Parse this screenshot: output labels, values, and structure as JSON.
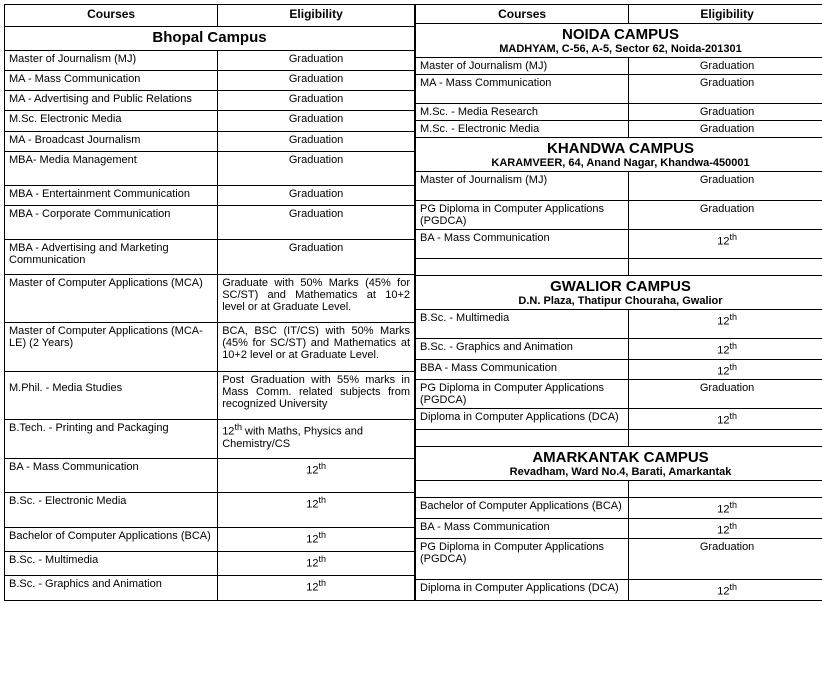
{
  "headers": {
    "courses": "Courses",
    "eligibility": "Eligibility"
  },
  "left": {
    "campus": "Bhopal Campus",
    "rows": [
      {
        "c": "Master of Journalism (MJ)",
        "e": "Graduation",
        "ea": "center"
      },
      {
        "c": "MA - Mass Communication",
        "e": "Graduation",
        "ea": "center"
      },
      {
        "c": "MA - Advertising and Public Relations",
        "e": "Graduation",
        "ea": "center"
      },
      {
        "c": "M.Sc. Electronic Media",
        "e": "Graduation",
        "ea": "center"
      },
      {
        "c": "MA - Broadcast Journalism",
        "e": "Graduation",
        "ea": "center"
      },
      {
        "c": "MBA- Media Management",
        "e": "Graduation",
        "ea": "center",
        "padBottom": true
      },
      {
        "c": "MBA - Entertainment Communication",
        "e": "Graduation",
        "ea": "center"
      },
      {
        "c": "MBA - Corporate Communication",
        "e": "Graduation",
        "ea": "center",
        "padBottom": true
      },
      {
        "c": "MBA - Advertising and Marketing Communication",
        "e": "Graduation",
        "ea": "center"
      },
      {
        "c": "Master of Computer Applications (MCA)",
        "e": "Graduate with 50% Marks (45% for SC/ST) and Mathematics at 10+2 level or at Graduate Level.",
        "ea": "justify"
      },
      {
        "c": "Master of Computer Applications (MCA-LE) (2 Years)",
        "e": "BCA, BSC (IT/CS) with 50% Marks (45% for SC/ST) and Mathematics at 10+2 level or at Graduate Level.",
        "ea": "justify"
      },
      {
        "c": "M.Phil. - Media Studies",
        "e": "Post Graduation with 55% marks in Mass Comm. related subjects from recognized University",
        "ea": "justify",
        "padTop": true
      },
      {
        "c": "B.Tech. - Printing and Packaging",
        "e": "12__SUP__ with Maths, Physics and Chemistry/CS",
        "ea": "left"
      },
      {
        "c": "BA - Mass Communication",
        "e": "12__SUP__",
        "ea": "center",
        "padBottom": true
      },
      {
        "c": "B.Sc. - Electronic Media",
        "e": "12__SUP__",
        "ea": "center",
        "padBottom": true
      },
      {
        "c": "Bachelor of Computer Applications (BCA)",
        "e": "12__SUP__",
        "ea": "center"
      },
      {
        "c": "B.Sc. - Multimedia",
        "e": "12__SUP__",
        "ea": "center"
      },
      {
        "c": "B.Sc. - Graphics and Animation",
        "e": "12__SUP__",
        "ea": "center"
      }
    ]
  },
  "right": [
    {
      "campus": "NOIDA CAMPUS",
      "sub": "MADHYAM, C-56, A-5, Sector 62, Noida-201301",
      "rows": [
        {
          "c": "Master of Journalism (MJ)",
          "e": "Graduation",
          "ea": "center"
        },
        {
          "c": "MA - Mass Communication",
          "e": "Graduation",
          "ea": "center",
          "padBottom": true
        },
        {
          "c": "M.Sc. - Media Research",
          "e": "Graduation",
          "ea": "center"
        },
        {
          "c": "M.Sc. - Electronic Media",
          "e": "Graduation",
          "ea": "center"
        }
      ]
    },
    {
      "campus": "KHANDWA CAMPUS",
      "sub": "KARAMVEER, 64, Anand Nagar, Khandwa-450001",
      "rows": [
        {
          "c": "Master of Journalism (MJ)",
          "e": "Graduation",
          "ea": "center",
          "padBottom": true
        },
        {
          "c": "PG Diploma in Computer Applications (PGDCA)",
          "e": "Graduation",
          "ea": "center"
        },
        {
          "c": "BA - Mass Communication",
          "e": "12__SUP__",
          "ea": "center",
          "padBottom": true
        }
      ],
      "spacerAfter": true
    },
    {
      "campus": "GWALIOR CAMPUS",
      "sub": "D.N. Plaza, Thatipur Chouraha, Gwalior",
      "rows": [
        {
          "c": "B.Sc. - Multimedia",
          "e": "12__SUP__",
          "ea": "center",
          "padBottom": true
        },
        {
          "c": "B.Sc. - Graphics and Animation",
          "e": "12__SUP__",
          "ea": "center"
        },
        {
          "c": "BBA - Mass Communication",
          "e": "12__SUP__",
          "ea": "center"
        },
        {
          "c": "PG Diploma in Computer Applications (PGDCA)",
          "e": "Graduation",
          "ea": "center"
        },
        {
          "c": "Diploma in Computer Applications (DCA)",
          "e": "12__SUP__",
          "ea": "center"
        }
      ],
      "spacerAfter": true
    },
    {
      "campus": "AMARKANTAK CAMPUS",
      "sub": "Revadham, Ward No.4, Barati, Amarkantak",
      "rows": [
        {
          "spacer": true
        },
        {
          "c": "Bachelor of Computer Applications (BCA)",
          "e": "12__SUP__",
          "ea": "center"
        },
        {
          "c": "BA - Mass Communication",
          "e": "12__SUP__",
          "ea": "center"
        },
        {
          "c": "PG Diploma in Computer Applications (PGDCA)",
          "e": "Graduation",
          "ea": "center",
          "padBottom": true
        },
        {
          "c": "Diploma in Computer Applications (DCA)",
          "e": "12__SUP__",
          "ea": "center"
        }
      ]
    }
  ]
}
